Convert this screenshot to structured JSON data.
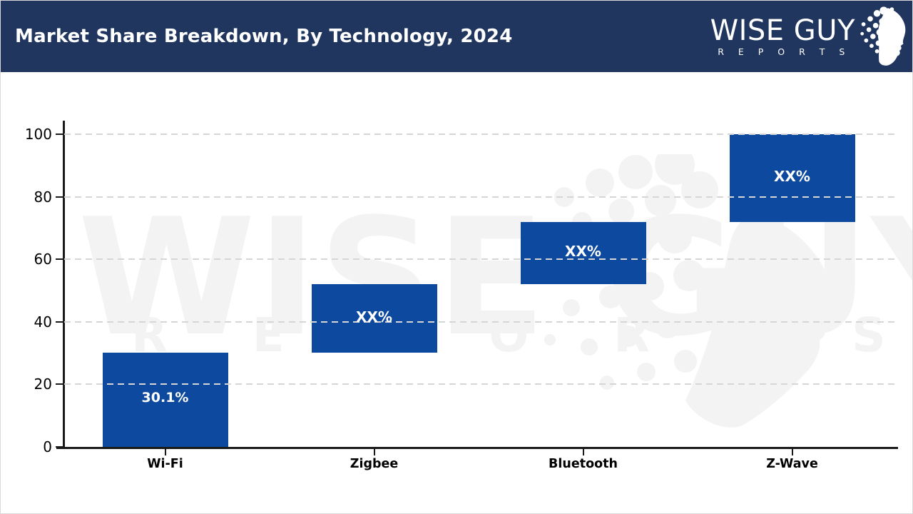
{
  "header": {
    "title": "Market Share Breakdown, By Technology, 2024",
    "logo": {
      "name": "WISE GUY",
      "tagline": "R E P O R T S"
    }
  },
  "watermark": {
    "text": "WISE GUY",
    "tagline": "R E P O R T S"
  },
  "chart_data": {
    "type": "bar",
    "subtype": "waterfall",
    "title": "Market Share Breakdown, By Technology, 2024",
    "categories": [
      "Wi-Fi",
      "Zigbee",
      "Bluetooth",
      "Z-Wave"
    ],
    "segments": [
      {
        "category": "Wi-Fi",
        "start": 0,
        "end": 30.1,
        "label": "30.1%"
      },
      {
        "category": "Zigbee",
        "start": 30.1,
        "end": 52,
        "label": "XX%"
      },
      {
        "category": "Bluetooth",
        "start": 52,
        "end": 72,
        "label": "XX%"
      },
      {
        "category": "Z-Wave",
        "start": 72,
        "end": 100,
        "label": "XX%"
      }
    ],
    "ylim": [
      0,
      100
    ],
    "yticks": [
      0,
      20,
      40,
      60,
      80,
      100
    ],
    "xlabel": "",
    "ylabel": "",
    "grid": "horizontal-dashed",
    "legend": "none",
    "bar_color": "#0d4a9f",
    "bar_label_color": "#ffffff",
    "axis_color": "#1a1a1a",
    "header_bg_color": "#20365f",
    "watermark_color": "#f3f3f3"
  }
}
